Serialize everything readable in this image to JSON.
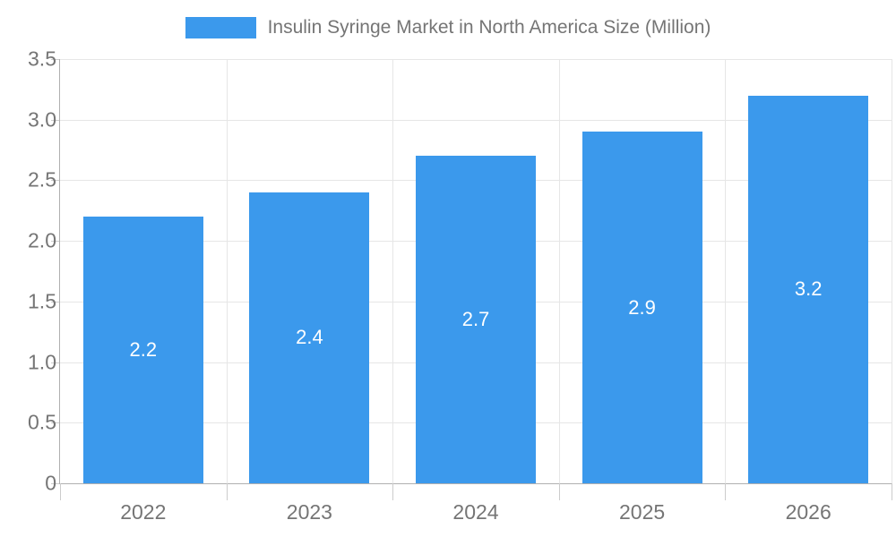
{
  "legend": {
    "label": "Insulin Syringe Market in North America Size (Million)"
  },
  "colors": {
    "bar": "#3b99ec",
    "axis": "#b0b0b0",
    "gridline": "#e6e6e6",
    "tick": "#cccccc",
    "text": "#757575",
    "bar_label": "#ffffff"
  },
  "chart_data": {
    "type": "bar",
    "title": "Insulin Syringe Market in North America Size (Million)",
    "categories": [
      "2022",
      "2023",
      "2024",
      "2025",
      "2026"
    ],
    "values": [
      2.2,
      2.4,
      2.7,
      2.9,
      3.2
    ],
    "data_labels": [
      "2.2",
      "2.4",
      "2.7",
      "2.9",
      "3.2"
    ],
    "xlabel": "",
    "ylabel": "",
    "ylim": [
      0,
      3.5
    ],
    "ytick_step": 0.5,
    "ytick_labels": [
      "0",
      "0.5",
      "1.0",
      "1.5",
      "2.0",
      "2.5",
      "3.0",
      "3.5"
    ],
    "grid": true,
    "legend_position": "top",
    "bar_color": "#3b99ec",
    "data_label_position": "bar-center"
  }
}
